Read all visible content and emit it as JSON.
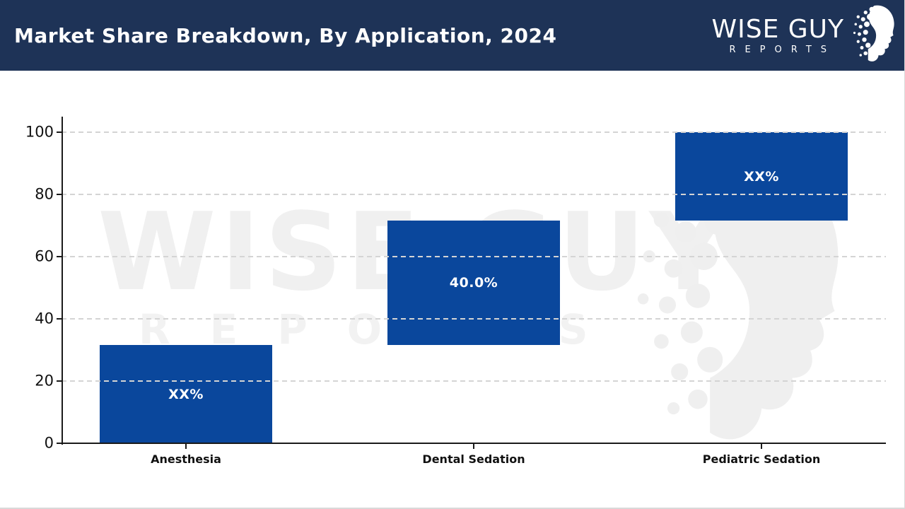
{
  "header": {
    "title": "Market Share Breakdown, By Application, 2024",
    "logo_line1": "WISE GUY",
    "logo_line2": "REPORTS"
  },
  "watermark": {
    "line1": "WISE GUY",
    "line2": "REPORTS"
  },
  "colors": {
    "header_bg": "#1e3357",
    "bar": "#0a479c",
    "grid": "#d4d4d4",
    "axis": "#1a1a1a",
    "bar_label_text": "#ffffff",
    "watermark": "#f0f0f0"
  },
  "chart_data": {
    "type": "bar",
    "subtype": "floating_segment_breakdown",
    "title": "Market Share Breakdown, By Application, 2024",
    "categories": [
      "Anesthesia",
      "Dental Sedation",
      "Pediatric Sedation"
    ],
    "segments": [
      {
        "category": "Anesthesia",
        "start": 0,
        "end": 31.5,
        "label": "XX%"
      },
      {
        "category": "Dental Sedation",
        "start": 31.5,
        "end": 71.5,
        "label": "40.0%"
      },
      {
        "category": "Pediatric Sedation",
        "start": 71.5,
        "end": 100,
        "label": "XX%"
      }
    ],
    "yticks": [
      0,
      20,
      40,
      60,
      80,
      100
    ],
    "ylim": [
      0,
      105
    ],
    "xlabel": "",
    "ylabel": "",
    "grid": "horizontal_dashed_above_bars",
    "legend": "none"
  }
}
